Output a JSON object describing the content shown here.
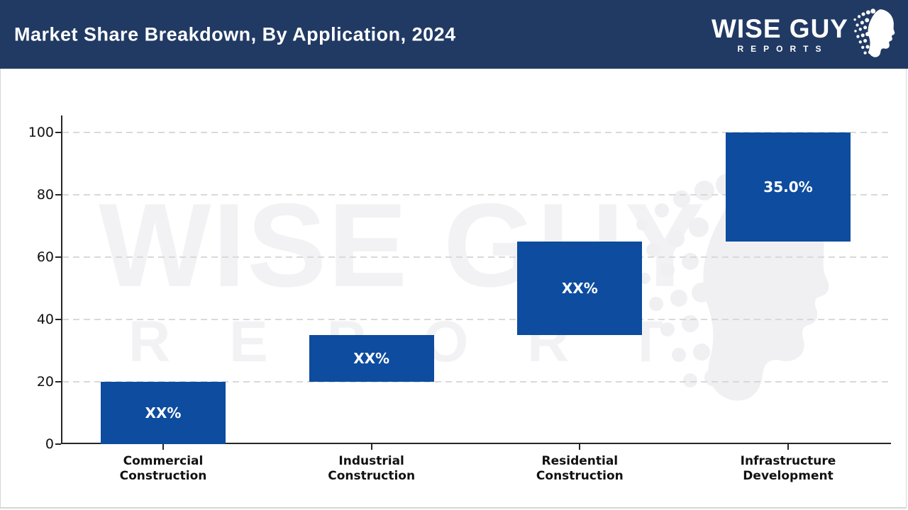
{
  "header": {
    "title": "Market Share Breakdown, By Application, 2024",
    "logo": {
      "line1": "WISE GUY",
      "line2": "REPORTS"
    }
  },
  "watermark": {
    "line1": "WISE GUY",
    "line2": "REPORTS"
  },
  "colors": {
    "header_bg": "#213A64",
    "bar": "#0D4C9F",
    "axis": "#262626",
    "grid": "#d9d9d9",
    "watermark": "#f2f2f4",
    "bar_label_text": "#ffffff"
  },
  "chart_data": {
    "type": "bar",
    "variant": "waterfall",
    "title": "Market Share Breakdown, By Application, 2024",
    "categories": [
      [
        "Commercial",
        "Construction"
      ],
      [
        "Industrial",
        "Construction"
      ],
      [
        "Residential",
        "Construction"
      ],
      [
        "Infrastructure",
        "Development"
      ]
    ],
    "segments": [
      {
        "start": 0,
        "end": 20,
        "value": 20,
        "label": "XX%"
      },
      {
        "start": 20,
        "end": 35,
        "value": 15,
        "label": "XX%"
      },
      {
        "start": 35,
        "end": 65,
        "value": 30,
        "label": "XX%"
      },
      {
        "start": 65,
        "end": 100,
        "value": 35,
        "label": "35.0%"
      }
    ],
    "y_ticks": [
      0,
      20,
      40,
      60,
      80,
      100
    ],
    "ylim": [
      0,
      100
    ],
    "xlabel": "",
    "ylabel": "",
    "grid": "horizontal-dashed",
    "legend": false
  }
}
